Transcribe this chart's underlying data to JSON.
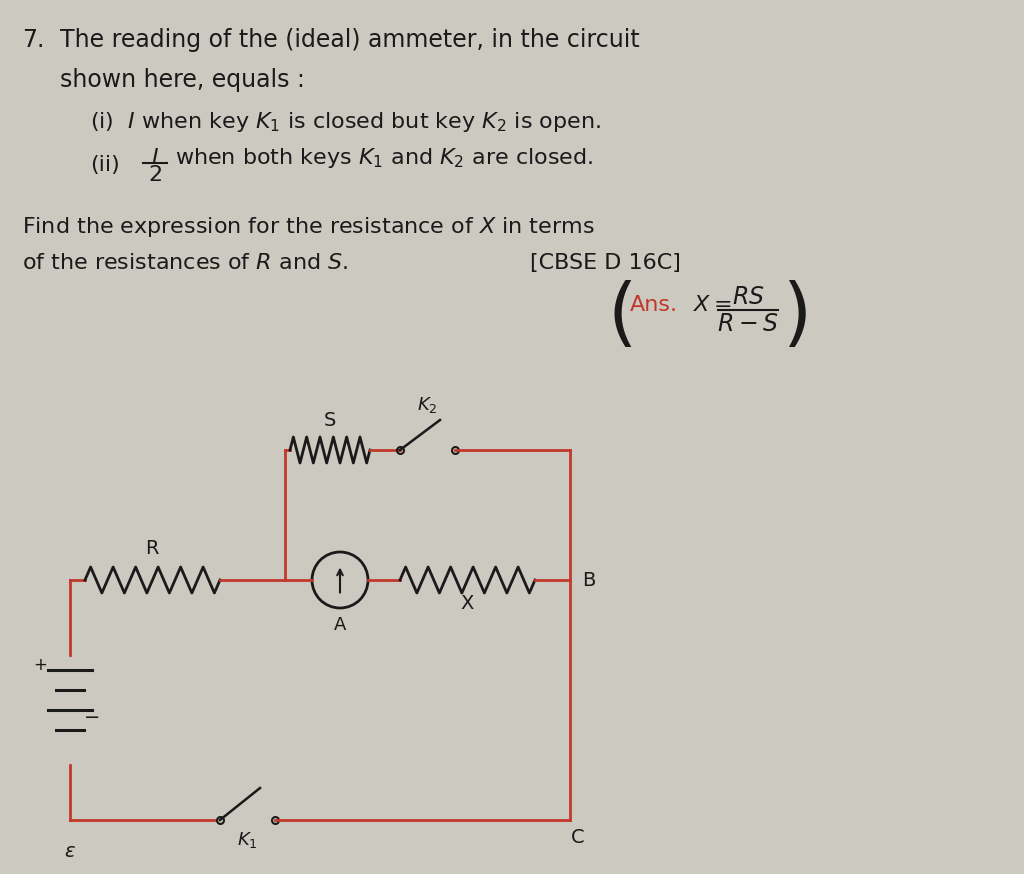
{
  "bg_color": "#ccc9c0",
  "text_color": "#1a1a1a",
  "circuit_color": "#c0392b",
  "dark_color": "#1a1a1a",
  "red_color": "#c0392b",
  "label_R": "R",
  "label_S": "S",
  "label_X": "X",
  "label_A": "A",
  "label_B": "B",
  "label_C": "C",
  "label_K1": "$K_1$",
  "label_K2": "$K_2$",
  "label_eps": "$\\varepsilon$",
  "label_plus": "+",
  "label_minus": "−"
}
